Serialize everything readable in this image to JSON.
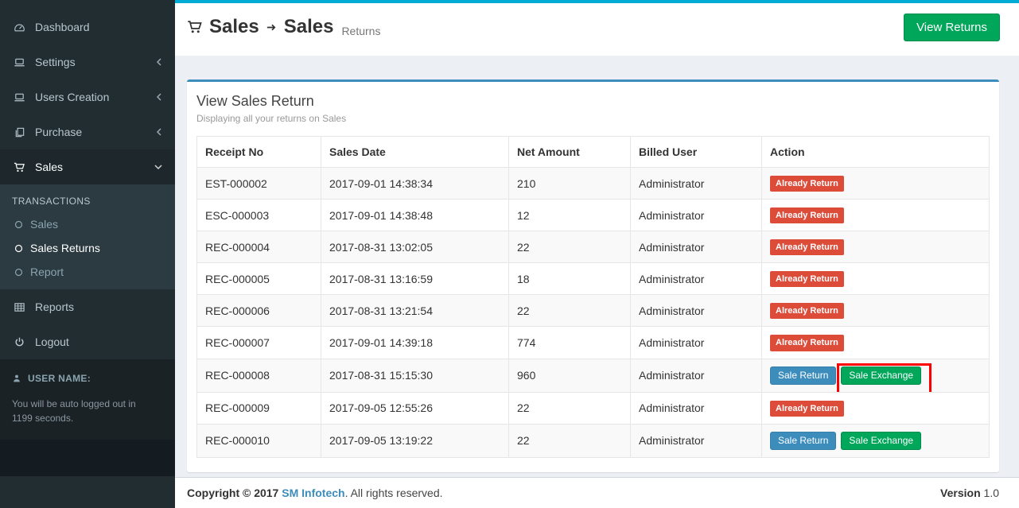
{
  "sidebar": {
    "items": [
      {
        "label": "Dashboard",
        "icon": "dashboard-icon"
      },
      {
        "label": "Settings",
        "icon": "laptop-icon",
        "chevron": "left"
      },
      {
        "label": "Users Creation",
        "icon": "laptop-icon",
        "chevron": "left"
      },
      {
        "label": "Purchase",
        "icon": "files-icon",
        "chevron": "left"
      },
      {
        "label": "Sales",
        "icon": "cart-icon",
        "chevron": "down",
        "active": true
      }
    ],
    "transactions_header": "TRANSACTIONS",
    "submenu": [
      {
        "label": "Sales",
        "icon": "circle-icon"
      },
      {
        "label": "Sales Returns",
        "icon": "circle-icon",
        "current": true
      },
      {
        "label": "Report",
        "icon": "circle-icon"
      }
    ],
    "bottom_items": [
      {
        "label": "Reports",
        "icon": "table-icon"
      },
      {
        "label": "Logout",
        "icon": "power-icon"
      }
    ],
    "user_label": "USER NAME:",
    "auto_logout_notice": "You will be auto logged out in 1199 seconds."
  },
  "header": {
    "breadcrumb": {
      "section": "Sales",
      "page": "Sales",
      "page_suffix": "Returns"
    },
    "view_returns_button": "View Returns"
  },
  "panel": {
    "title": "View Sales Return",
    "subtitle": "Displaying all your returns on Sales"
  },
  "table": {
    "columns": [
      "Receipt No",
      "Sales Date",
      "Net Amount",
      "Billed User",
      "Action"
    ],
    "rows": [
      {
        "receipt": "EST-000002",
        "date": "2017-09-01 14:38:34",
        "amount": "210",
        "user": "Administrator",
        "actions": [
          {
            "label": "Already Return",
            "style": "badge-danger",
            "kind": "badge"
          }
        ]
      },
      {
        "receipt": "ESC-000003",
        "date": "2017-09-01 14:38:48",
        "amount": "12",
        "user": "Administrator",
        "actions": [
          {
            "label": "Already Return",
            "style": "badge-danger",
            "kind": "badge"
          }
        ]
      },
      {
        "receipt": "REC-000004",
        "date": "2017-08-31 13:02:05",
        "amount": "22",
        "user": "Administrator",
        "actions": [
          {
            "label": "Already Return",
            "style": "badge-danger",
            "kind": "badge"
          }
        ]
      },
      {
        "receipt": "REC-000005",
        "date": "2017-08-31 13:16:59",
        "amount": "18",
        "user": "Administrator",
        "actions": [
          {
            "label": "Already Return",
            "style": "badge-danger",
            "kind": "badge"
          }
        ]
      },
      {
        "receipt": "REC-000006",
        "date": "2017-08-31 13:21:54",
        "amount": "22",
        "user": "Administrator",
        "actions": [
          {
            "label": "Already Return",
            "style": "badge-danger",
            "kind": "badge"
          }
        ]
      },
      {
        "receipt": "REC-000007",
        "date": "2017-09-01 14:39:18",
        "amount": "774",
        "user": "Administrator",
        "actions": [
          {
            "label": "Already Return",
            "style": "badge-danger",
            "kind": "badge"
          }
        ]
      },
      {
        "receipt": "REC-000008",
        "date": "2017-08-31 15:15:30",
        "amount": "960",
        "user": "Administrator",
        "actions": [
          {
            "label": "Sale Return",
            "style": "btn-primary",
            "kind": "button"
          },
          {
            "label": "Sale Exchange",
            "style": "btn-success",
            "kind": "button",
            "highlighted": true
          }
        ]
      },
      {
        "receipt": "REC-000009",
        "date": "2017-09-05 12:55:26",
        "amount": "22",
        "user": "Administrator",
        "actions": [
          {
            "label": "Already Return",
            "style": "badge-danger",
            "kind": "badge"
          }
        ]
      },
      {
        "receipt": "REC-000010",
        "date": "2017-09-05 13:19:22",
        "amount": "22",
        "user": "Administrator",
        "actions": [
          {
            "label": "Sale Return",
            "style": "btn-primary",
            "kind": "button"
          },
          {
            "label": "Sale Exchange",
            "style": "btn-success",
            "kind": "button"
          }
        ]
      }
    ]
  },
  "footer": {
    "copyright_prefix": "Copyright © 2017",
    "company_link": "SM Infotech",
    "rights_text": ". All rights reserved.",
    "version_label": "Version",
    "version_value": "1.0"
  },
  "colors": {
    "topbar_blue": "#00acd6",
    "accent_blue": "#3c8dbc",
    "success_green": "#00a65a",
    "danger_red": "#dd4b39",
    "sidebar_dark": "#222d32",
    "annotation_red": "#ff0000"
  }
}
